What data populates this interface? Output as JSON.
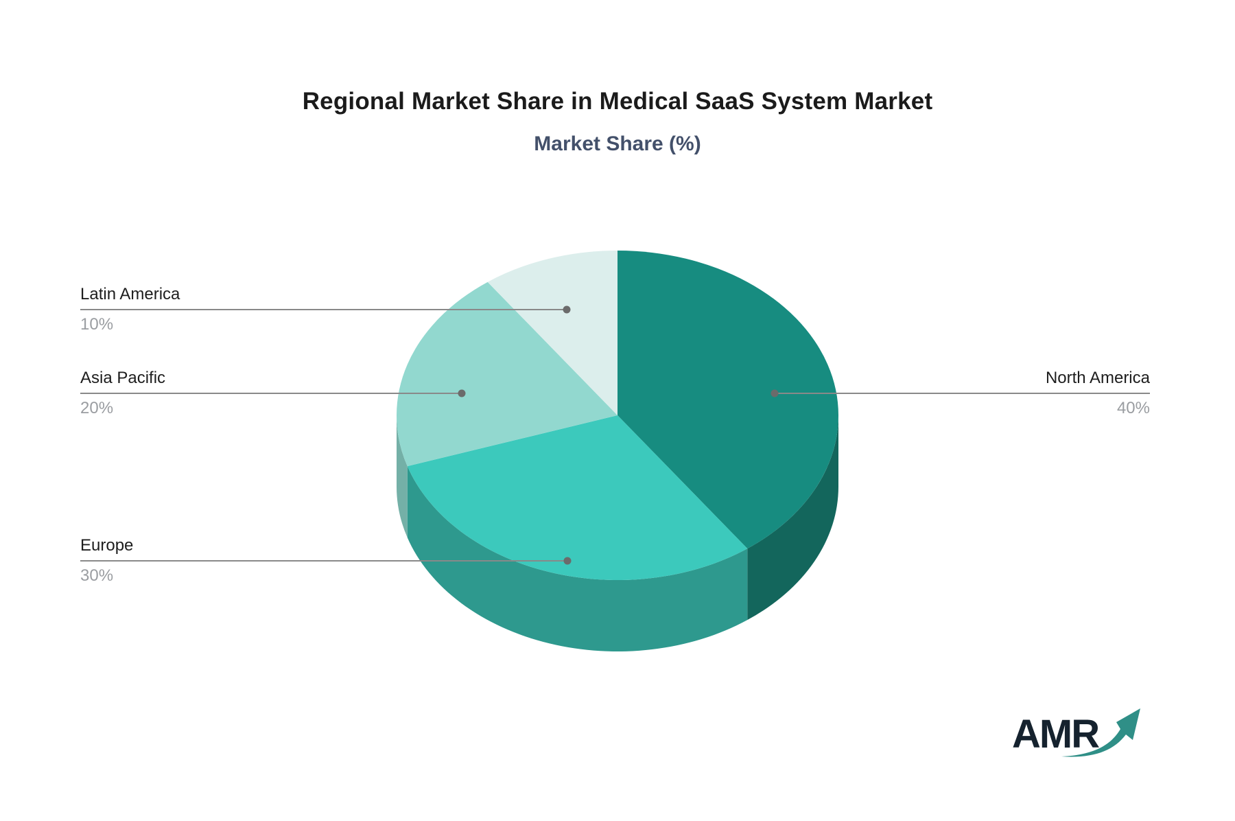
{
  "title": "Regional Market Share in Medical SaaS System Market",
  "subtitle": "Market Share (%)",
  "chart_data": {
    "type": "pie",
    "style": "3d",
    "title": "Regional Market Share in Medical SaaS System Market",
    "subtitle": "Market Share (%)",
    "unit": "%",
    "start_angle_deg": 0,
    "direction": "clockwise",
    "categories": [
      "North America",
      "Europe",
      "Asia Pacific",
      "Latin America"
    ],
    "values": [
      40,
      30,
      20,
      10
    ],
    "labels": [
      {
        "name": "North America",
        "value_text": "40%",
        "side": "right"
      },
      {
        "name": "Europe",
        "value_text": "30%",
        "side": "left"
      },
      {
        "name": "Asia Pacific",
        "value_text": "20%",
        "side": "left"
      },
      {
        "name": "Latin America",
        "value_text": "10%",
        "side": "left"
      }
    ],
    "slice_colors": [
      "#178C80",
      "#3CC9BC",
      "#92D8CF",
      "#DCEEEC"
    ],
    "slice_side_colors": [
      "#13665C",
      "#2E998E",
      "#74B0A7",
      "#B9DAD5"
    ],
    "leader_line_color": "#898989",
    "leader_dot_color": "#6B6B6B",
    "legend": "none",
    "grid": false
  },
  "logo": {
    "text": "AMR",
    "text_color": "#15222e",
    "arrow_color": "#2F8F87"
  },
  "colors": {
    "title": "#1b1b1b",
    "subtitle": "#43506a",
    "label_name": "#1d1d1d",
    "label_value": "#9a9da1",
    "background": "#ffffff"
  }
}
